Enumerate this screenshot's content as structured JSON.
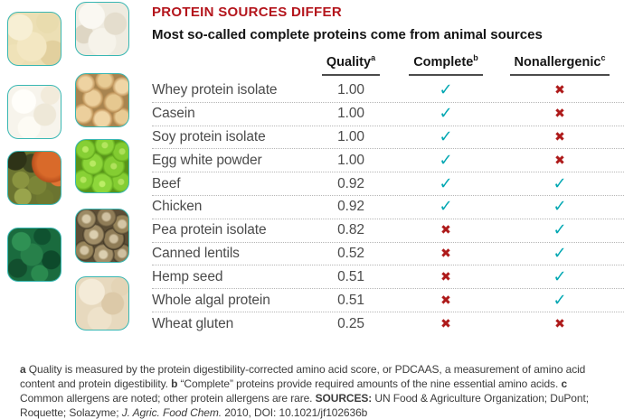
{
  "header": {
    "title": "PROTEIN SOURCES DIFFER",
    "subtitle": "Most so-called complete proteins come from animal sources"
  },
  "chart_data": {
    "type": "table",
    "title": "PROTEIN SOURCES DIFFER",
    "subtitle": "Most so-called complete proteins come from animal sources",
    "columns": [
      {
        "label": "Quality",
        "sup": "a"
      },
      {
        "label": "Complete",
        "sup": "b"
      },
      {
        "label": "Nonallergenic",
        "sup": "c"
      }
    ],
    "rows": [
      {
        "name": "Whey protein isolate",
        "quality": "1.00",
        "complete": true,
        "nonallergenic": false
      },
      {
        "name": "Casein",
        "quality": "1.00",
        "complete": true,
        "nonallergenic": false
      },
      {
        "name": "Soy protein isolate",
        "quality": "1.00",
        "complete": true,
        "nonallergenic": false
      },
      {
        "name": "Egg white powder",
        "quality": "1.00",
        "complete": true,
        "nonallergenic": false
      },
      {
        "name": "Beef",
        "quality": "0.92",
        "complete": true,
        "nonallergenic": true
      },
      {
        "name": "Chicken",
        "quality": "0.92",
        "complete": true,
        "nonallergenic": true
      },
      {
        "name": "Pea protein isolate",
        "quality": "0.82",
        "complete": false,
        "nonallergenic": true
      },
      {
        "name": "Canned lentils",
        "quality": "0.52",
        "complete": false,
        "nonallergenic": true
      },
      {
        "name": "Hemp seed",
        "quality": "0.51",
        "complete": false,
        "nonallergenic": true
      },
      {
        "name": "Whole algal protein",
        "quality": "0.51",
        "complete": false,
        "nonallergenic": true
      },
      {
        "name": "Wheat gluten",
        "quality": "0.25",
        "complete": false,
        "nonallergenic": false
      }
    ]
  },
  "glyphs": {
    "check": "✓",
    "cross": "✖"
  },
  "colors": {
    "title_red": "#b4151c",
    "check_teal": "#00a7b2",
    "cross_red": "#ae1a1a",
    "tile_border_teal": "#38b7b3"
  },
  "images": [
    {
      "name": "whey-powder-photo"
    },
    {
      "name": "white-flour-powder-photo"
    },
    {
      "name": "casein-curd-photo"
    },
    {
      "name": "soybeans-photo"
    },
    {
      "name": "lentils-photo"
    },
    {
      "name": "green-peas-photo"
    },
    {
      "name": "spirulina-algae-photo"
    },
    {
      "name": "hemp-seeds-photo"
    },
    {
      "name": "wheat-gluten-photo"
    }
  ],
  "footnote": {
    "segments": [
      {
        "text": "a",
        "style": "bold"
      },
      {
        "text": " Quality is measured by the protein digestibility-corrected amino acid score, or PDCAAS, a measurement of amino acid content and protein digestibility. ",
        "style": "normal"
      },
      {
        "text": "b",
        "style": "bold"
      },
      {
        "text": " “Complete” proteins provide required amounts of the nine essential amino acids. ",
        "style": "normal"
      },
      {
        "text": "c",
        "style": "bold"
      },
      {
        "text": " Common allergens are noted; other protein allergens are rare. ",
        "style": "normal"
      },
      {
        "text": "SOURCES:",
        "style": "bold"
      },
      {
        "text": " UN Food & Agriculture Organization; DuPont; Roquette; Solazyme; ",
        "style": "normal"
      },
      {
        "text": "J. Agric. Food Chem.",
        "style": "italic"
      },
      {
        "text": " 2010, DOI: 10.1021/jf102636b",
        "style": "normal"
      }
    ]
  }
}
